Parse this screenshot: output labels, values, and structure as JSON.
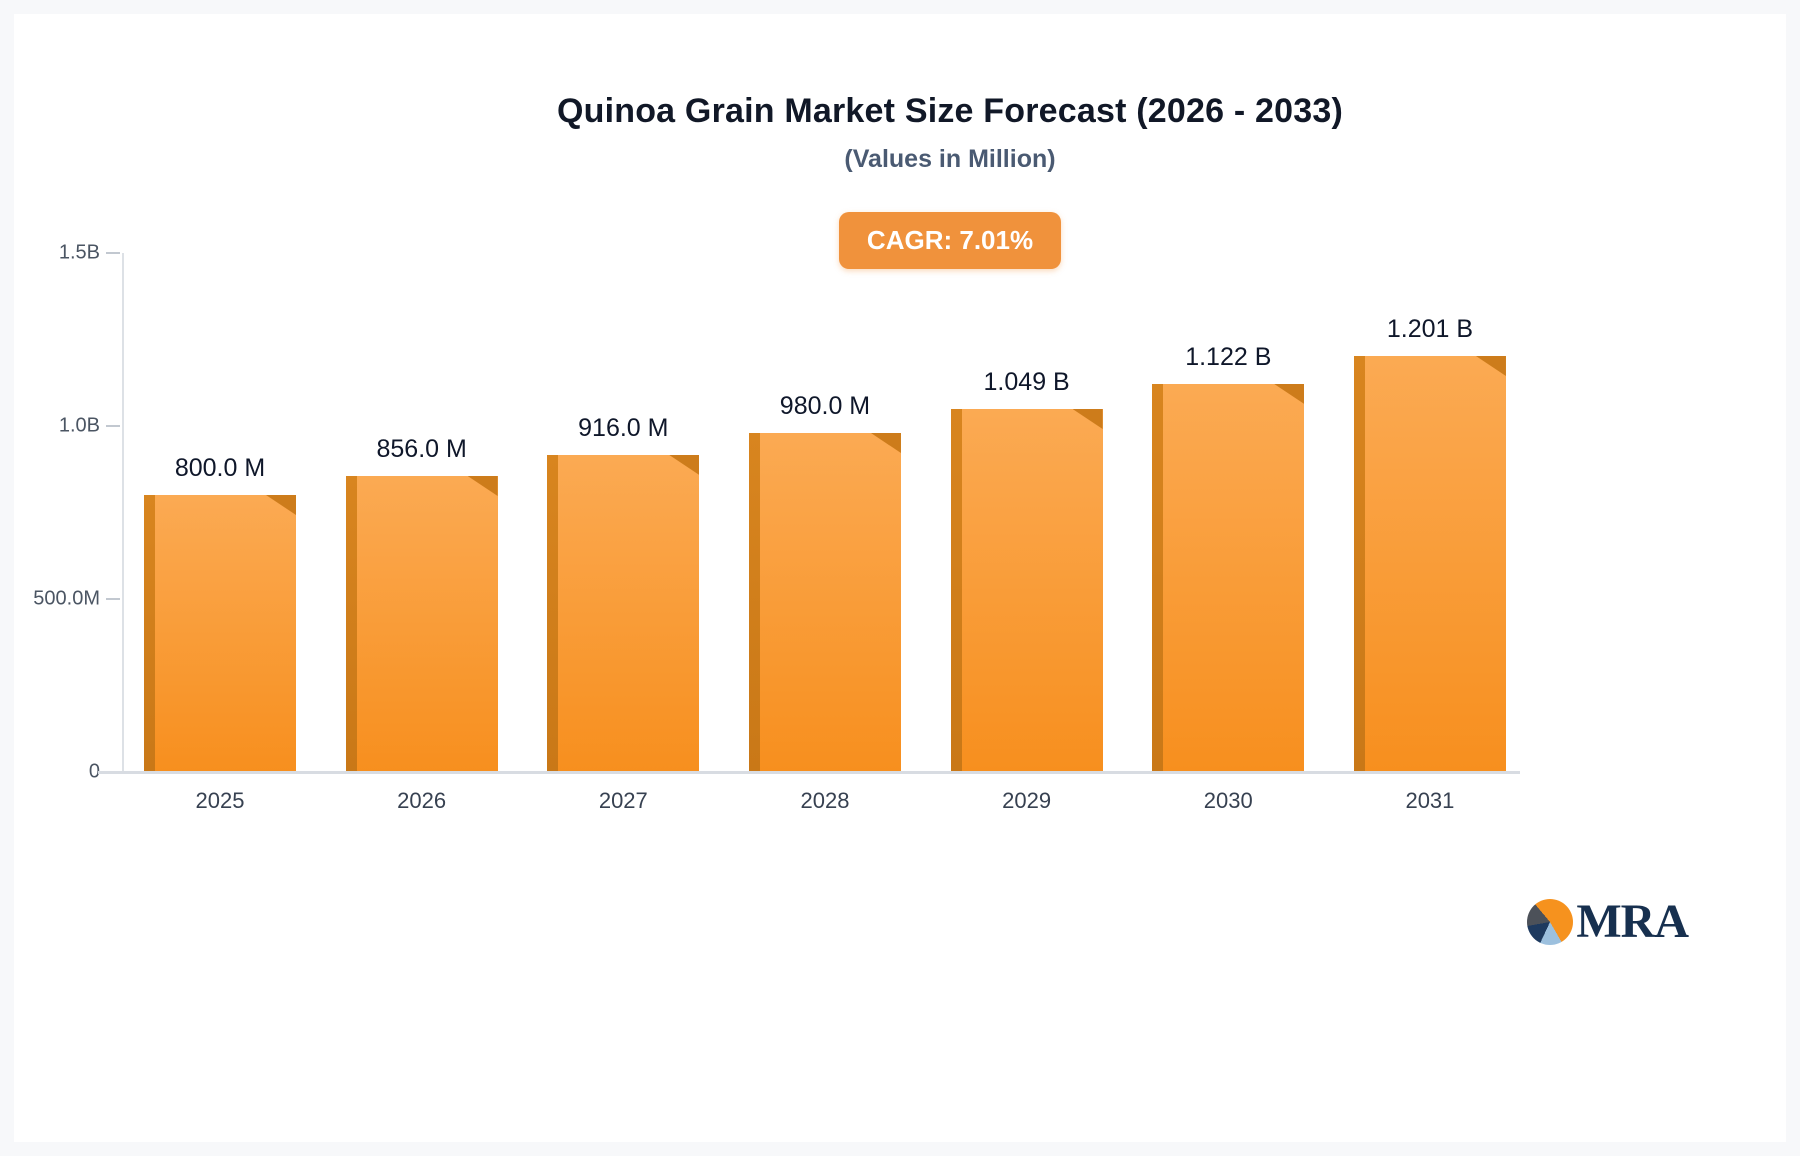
{
  "chart_data": {
    "type": "bar",
    "title": "Quinoa Grain Market Size Forecast (2026 - 2033)",
    "subtitle": "(Values in Million)",
    "cagr_label": "CAGR: 7.01%",
    "categories": [
      "2025",
      "2026",
      "2027",
      "2028",
      "2029",
      "2030",
      "2031"
    ],
    "values_millions": [
      800,
      856,
      916,
      980,
      1049,
      1122,
      1201
    ],
    "value_labels": [
      "800.0 M",
      "856.0 M",
      "916.0 M",
      "980.0 M",
      "1.049 B",
      "1.122 B",
      "1.201 B"
    ],
    "ylabel": "",
    "xlabel": "",
    "ylim_millions": [
      0,
      1500
    ],
    "y_ticks": [
      "1.5B",
      "1.0B",
      "500.0M",
      "0"
    ],
    "grid": "off",
    "legend": "none",
    "colors": {
      "bar_top": "#fbaa53",
      "bar_bottom": "#f78f1e",
      "bar_side": "#c97817",
      "badge_bg": "#f0923c"
    }
  },
  "logo": {
    "text": "MRA"
  }
}
